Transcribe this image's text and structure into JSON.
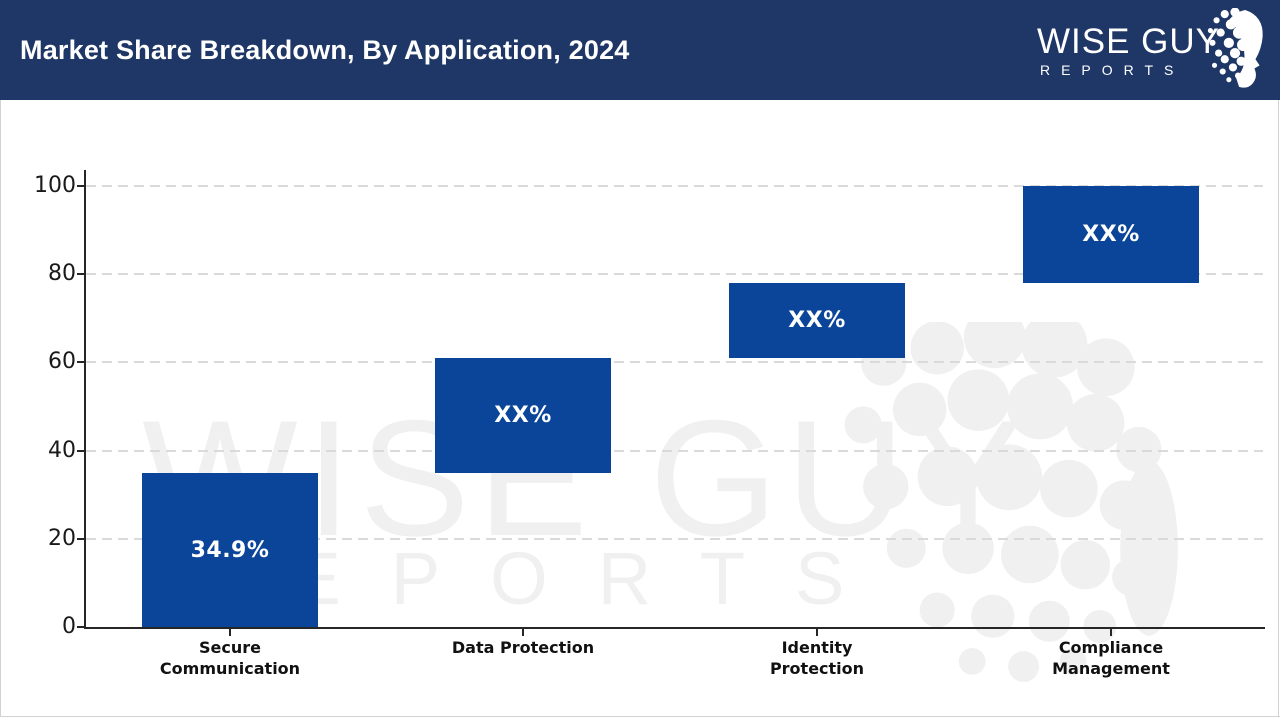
{
  "header": {
    "title": "Market Share Breakdown, By Application, 2024",
    "logo": {
      "name_line": "WISE GUY",
      "sub_line": "REPORTS",
      "head_icon": "dotted-head-profile"
    }
  },
  "watermark": {
    "name_line": "WISE GUY",
    "sub_line": "REPORTS",
    "head_icon": "dotted-head-profile"
  },
  "chart_data": {
    "type": "bar",
    "subtype": "stacked_waterfall_percentage",
    "title": "Market Share Breakdown, By Application, 2024",
    "categories": [
      "Secure Communication",
      "Data Protection",
      "Identity Protection",
      "Compliance Management"
    ],
    "category_lines": [
      [
        "Secure",
        "Communication"
      ],
      [
        "Data Protection"
      ],
      [
        "Identity",
        "Protection"
      ],
      [
        "Compliance",
        "Management"
      ]
    ],
    "segments": [
      {
        "category": "Secure Communication",
        "start": 0,
        "end": 34.9,
        "label": "34.9%"
      },
      {
        "category": "Data Protection",
        "start": 34.9,
        "end": 61,
        "label": "XX%"
      },
      {
        "category": "Identity Protection",
        "start": 61,
        "end": 78,
        "label": "XX%"
      },
      {
        "category": "Compliance Management",
        "start": 78,
        "end": 100,
        "label": "XX%"
      }
    ],
    "xlabel": "",
    "ylabel": "",
    "ylim": [
      0,
      100
    ],
    "yticks": [
      0,
      20,
      40,
      60,
      80,
      100
    ],
    "grid": "horizontal-dashed",
    "legend": "none",
    "bar_color": "#0b4599",
    "bar_label_color": "#ffffff"
  },
  "colors": {
    "header_bg": "#1f3767",
    "bar": "#0b4599",
    "grid": "#dadada",
    "axis": "#262626",
    "watermark": "#f0f0f1",
    "page_bg": "#ffffff",
    "border": "#d2d2d2",
    "title_text": "#ffffff",
    "tick_text": "#1a1a1a"
  }
}
